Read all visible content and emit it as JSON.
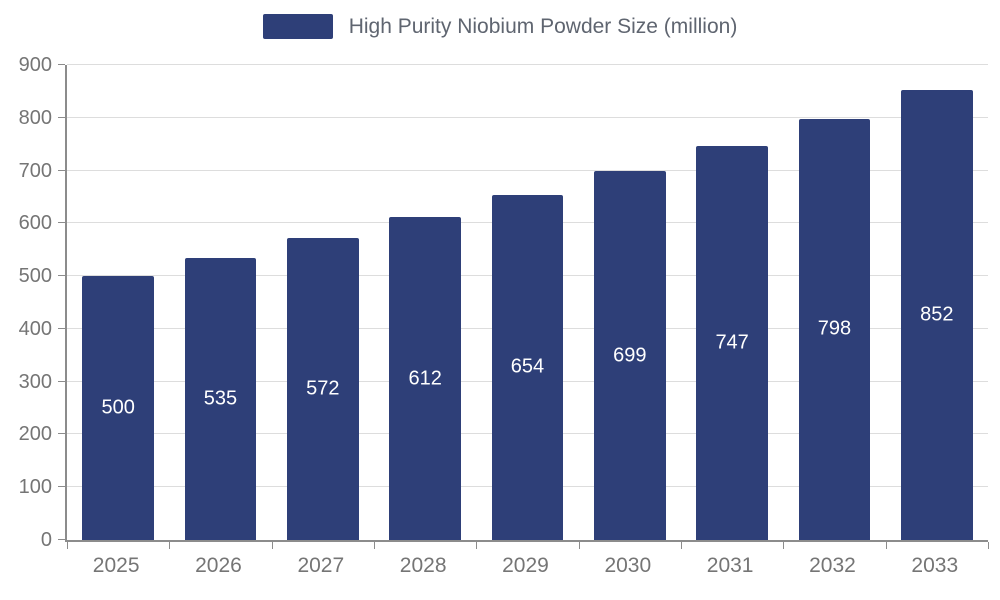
{
  "chart_data": {
    "type": "bar",
    "title": "High Purity Niobium Powder Size (million)",
    "categories": [
      "2025",
      "2026",
      "2027",
      "2028",
      "2029",
      "2030",
      "2031",
      "2032",
      "2033"
    ],
    "values": [
      500,
      535,
      572,
      612,
      654,
      699,
      747,
      798,
      852
    ],
    "xlabel": "",
    "ylabel": "",
    "ylim": [
      0,
      900
    ],
    "ytick_step": 100,
    "grid": true,
    "legend_position": "top",
    "colors": {
      "bar": "#2e3f78",
      "value_label": "#ffffff",
      "grid": "#dddddd",
      "axis_line": "#8c8c8c",
      "axis_text": "#757575",
      "legend_text": "#5f6570",
      "background": "#ffffff"
    }
  }
}
